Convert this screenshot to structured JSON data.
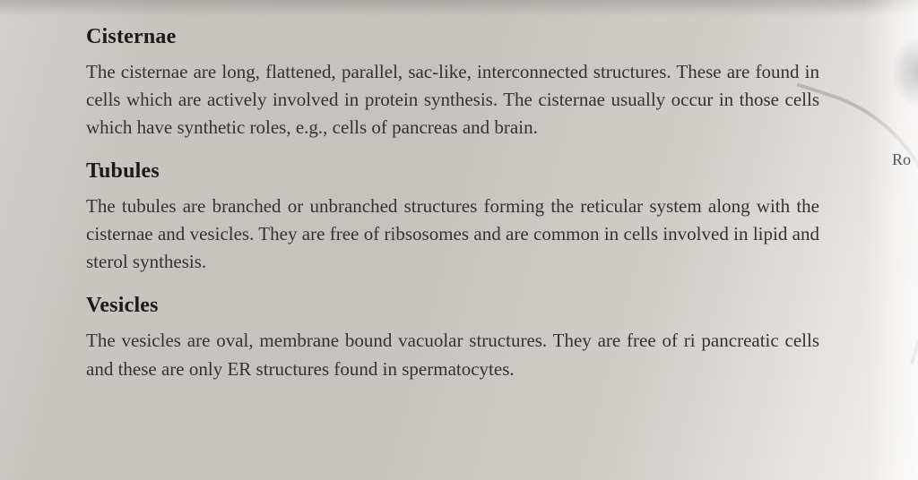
{
  "sections": {
    "cisternae": {
      "heading": "Cisternae",
      "para": "The cisternae are long, flattened, parallel, sac-like, interconnected structures. These are found in cells which are actively involved in protein synthesis. The cisternae usually occur in those cells which have synthetic roles, e.g., cells of pancreas and brain."
    },
    "tubules": {
      "heading": "Tubules",
      "para": "The tubules are branched or unbranched structures forming the reticular system along with the cisternae and vesicles. They are free of ribsosomes and are common in cells involved in lipid and sterol synthesis."
    },
    "vesicles": {
      "heading": "Vesicles",
      "para": "The vesicles are oval, membrane bound vacuolar structures. They are free of ri pancreatic cells and these are only ER structures found in spermatocytes."
    }
  },
  "margin_mark": "Ro"
}
